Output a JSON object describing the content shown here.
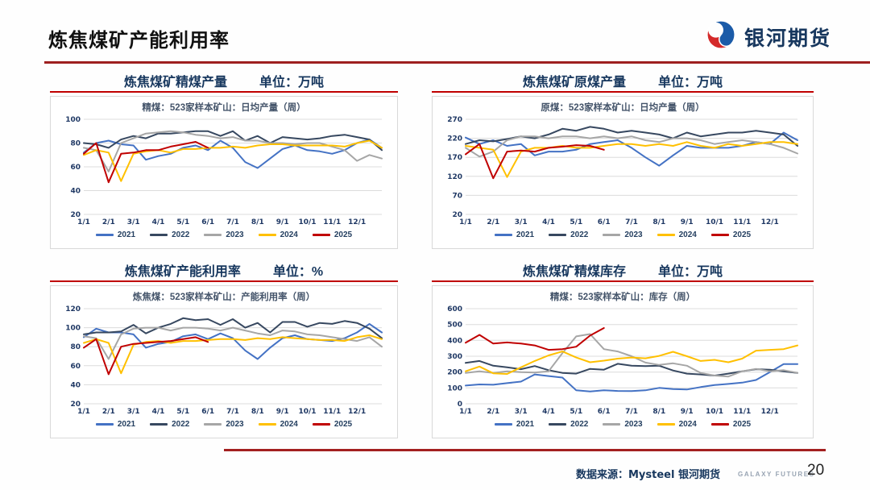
{
  "header": {
    "title": "炼焦煤矿产能利用率"
  },
  "logo": {
    "brand": "银河期货",
    "accent_red": "#d42a2a",
    "accent_blue": "#1b5ba8"
  },
  "footer": {
    "source": "数据来源：Mysteel 银河期货",
    "brand_en": "GALAXY FUTURES",
    "page": "20"
  },
  "chart_data": [
    {
      "type": "line",
      "title": "炼焦煤矿精煤产量",
      "unit": "单位：万吨",
      "subtitle": "精煤：523家样本矿山：日均产量（周）",
      "ylim": [
        20,
        100
      ],
      "y_ticks": [
        20,
        40,
        60,
        80,
        100
      ],
      "x_labels": [
        "1/1",
        "2/1",
        "3/1",
        "4/1",
        "5/1",
        "6/1",
        "7/1",
        "8/1",
        "9/1",
        "10/1",
        "11/1",
        "12/1"
      ],
      "grid": true,
      "legend_position": "bottom",
      "series": [
        {
          "name": "2021",
          "color": "#4472c4",
          "values": [
            72,
            80,
            82,
            79,
            78,
            66,
            69,
            71,
            76,
            78,
            74,
            82,
            76,
            64,
            59,
            67,
            75,
            78,
            74,
            73,
            71,
            74,
            80,
            83,
            76
          ]
        },
        {
          "name": "2022",
          "color": "#374860",
          "values": [
            80,
            79,
            76,
            83,
            86,
            84,
            88,
            88,
            89,
            90,
            90,
            86,
            90,
            82,
            86,
            80,
            85,
            84,
            83,
            84,
            86,
            87,
            85,
            83,
            74
          ]
        },
        {
          "name": "2023",
          "color": "#a6a6a6",
          "values": [
            76,
            74,
            56,
            80,
            84,
            88,
            89,
            90,
            89,
            87,
            86,
            84,
            85,
            82,
            82,
            80,
            80,
            79,
            80,
            80,
            77,
            74,
            65,
            70,
            67
          ]
        },
        {
          "name": "2024",
          "color": "#ffc000",
          "values": [
            70,
            74,
            72,
            48,
            71,
            73,
            74,
            72,
            75,
            75,
            76,
            76,
            77,
            76,
            78,
            79,
            79,
            78,
            78,
            78,
            78,
            77,
            80,
            82,
            76
          ]
        },
        {
          "name": "2025",
          "color": "#c00000",
          "values": [
            71,
            80,
            47,
            71,
            72,
            74,
            74,
            77,
            79,
            81,
            76,
            null,
            null,
            null,
            null,
            null,
            null,
            null,
            null,
            null,
            null,
            null,
            null,
            null,
            null
          ]
        }
      ]
    },
    {
      "type": "line",
      "title": "炼焦煤矿原煤产量",
      "unit": "单位：万吨",
      "subtitle": "原煤：523家样本矿山：日均产量（周）",
      "ylim": [
        20,
        270
      ],
      "y_ticks": [
        20,
        70,
        120,
        170,
        220,
        270
      ],
      "x_labels": [
        "1/1",
        "2/1",
        "3/1",
        "4/1",
        "5/1",
        "6/1",
        "7/1",
        "8/1",
        "9/1",
        "10/1",
        "11/1",
        "12/1"
      ],
      "grid": true,
      "legend_position": "bottom",
      "series": [
        {
          "name": "2021",
          "color": "#4472c4",
          "values": [
            222,
            205,
            215,
            200,
            205,
            175,
            185,
            185,
            190,
            205,
            210,
            215,
            195,
            170,
            148,
            175,
            200,
            195,
            195,
            195,
            200,
            210,
            205,
            235,
            215
          ]
        },
        {
          "name": "2022",
          "color": "#374860",
          "values": [
            205,
            215,
            212,
            218,
            225,
            220,
            230,
            245,
            240,
            250,
            245,
            235,
            240,
            235,
            230,
            220,
            235,
            225,
            230,
            235,
            235,
            240,
            235,
            230,
            200
          ]
        },
        {
          "name": "2023",
          "color": "#a6a6a6",
          "values": [
            195,
            172,
            185,
            215,
            225,
            225,
            220,
            225,
            225,
            220,
            225,
            220,
            225,
            215,
            210,
            220,
            220,
            215,
            205,
            210,
            215,
            210,
            205,
            195,
            180
          ]
        },
        {
          "name": "2024",
          "color": "#ffc000",
          "values": [
            200,
            195,
            190,
            118,
            185,
            195,
            195,
            200,
            195,
            195,
            200,
            205,
            205,
            200,
            205,
            200,
            210,
            200,
            195,
            205,
            200,
            205,
            210,
            210,
            205
          ]
        },
        {
          "name": "2025",
          "color": "#c00000",
          "values": [
            178,
            205,
            115,
            185,
            188,
            185,
            195,
            198,
            202,
            200,
            190,
            null,
            null,
            null,
            null,
            null,
            null,
            null,
            null,
            null,
            null,
            null,
            null,
            null,
            null
          ]
        }
      ]
    },
    {
      "type": "line",
      "title": "炼焦煤矿产能利用率",
      "unit": "单位：%",
      "subtitle": "炼焦煤：523家样本矿山：产能利用率（周）",
      "ylim": [
        20,
        120
      ],
      "y_ticks": [
        20,
        40,
        60,
        80,
        100,
        120
      ],
      "x_labels": [
        "1/1",
        "2/1",
        "3/1",
        "4/1",
        "5/1",
        "6/1",
        "7/1",
        "8/1",
        "9/1",
        "10/1",
        "11/1",
        "12/1"
      ],
      "grid": true,
      "legend_position": "bottom",
      "series": [
        {
          "name": "2021",
          "color": "#4472c4",
          "values": [
            90,
            99,
            95,
            95,
            93,
            79,
            83,
            85,
            91,
            93,
            88,
            94,
            89,
            76,
            67,
            79,
            89,
            92,
            88,
            87,
            86,
            89,
            95,
            104,
            95
          ]
        },
        {
          "name": "2022",
          "color": "#374860",
          "values": [
            93,
            95,
            95,
            96,
            103,
            94,
            100,
            104,
            110,
            108,
            109,
            103,
            109,
            100,
            105,
            95,
            106,
            106,
            101,
            105,
            104,
            107,
            105,
            99,
            89
          ]
        },
        {
          "name": "2023",
          "color": "#a6a6a6",
          "values": [
            91,
            89,
            67,
            93,
            99,
            100,
            100,
            97,
            100,
            100,
            99,
            97,
            100,
            97,
            94,
            92,
            97,
            96,
            93,
            92,
            90,
            88,
            86,
            90,
            80
          ]
        },
        {
          "name": "2024",
          "color": "#ffc000",
          "values": [
            84,
            88,
            84,
            52,
            82,
            85,
            86,
            84,
            86,
            86,
            87,
            88,
            88,
            87,
            89,
            88,
            90,
            89,
            88,
            87,
            87,
            86,
            90,
            92,
            88
          ]
        },
        {
          "name": "2025",
          "color": "#c00000",
          "values": [
            79,
            88,
            51,
            80,
            83,
            84,
            85,
            86,
            88,
            90,
            85,
            null,
            null,
            null,
            null,
            null,
            null,
            null,
            null,
            null,
            null,
            null,
            null,
            null,
            null
          ]
        }
      ]
    },
    {
      "type": "line",
      "title": "炼焦煤矿精煤库存",
      "unit": "单位：万吨",
      "subtitle": "精煤：523家样本矿山：库存（周）",
      "ylim": [
        0,
        600
      ],
      "y_ticks": [
        0,
        100,
        200,
        300,
        400,
        500,
        600
      ],
      "x_labels": [
        "1/1",
        "2/1",
        "3/1",
        "4/1",
        "5/1",
        "6/1",
        "7/1",
        "8/1",
        "9/1",
        "10/1",
        "11/1",
        "12/1"
      ],
      "grid": true,
      "legend_position": "bottom",
      "series": [
        {
          "name": "2021",
          "color": "#4472c4",
          "values": [
            115,
            122,
            120,
            130,
            140,
            185,
            175,
            165,
            85,
            78,
            85,
            81,
            80,
            85,
            100,
            93,
            90,
            105,
            118,
            125,
            133,
            150,
            200,
            250,
            250
          ]
        },
        {
          "name": "2022",
          "color": "#374860",
          "values": [
            258,
            270,
            240,
            230,
            218,
            238,
            212,
            195,
            190,
            220,
            215,
            252,
            240,
            238,
            240,
            210,
            190,
            185,
            178,
            190,
            205,
            218,
            215,
            205,
            195
          ]
        },
        {
          "name": "2023",
          "color": "#a6a6a6",
          "values": [
            195,
            205,
            195,
            205,
            200,
            197,
            205,
            320,
            425,
            440,
            345,
            330,
            300,
            260,
            245,
            255,
            240,
            195,
            178,
            172,
            205,
            220,
            205,
            212,
            195
          ]
        },
        {
          "name": "2024",
          "color": "#ffc000",
          "values": [
            205,
            235,
            192,
            188,
            230,
            270,
            305,
            330,
            292,
            262,
            272,
            285,
            292,
            287,
            302,
            328,
            300,
            270,
            277,
            262,
            285,
            335,
            340,
            345,
            368
          ]
        },
        {
          "name": "2025",
          "color": "#c00000",
          "values": [
            385,
            435,
            380,
            387,
            380,
            368,
            340,
            345,
            360,
            430,
            478,
            null,
            null,
            null,
            null,
            null,
            null,
            null,
            null,
            null,
            null,
            null,
            null,
            null,
            null
          ]
        }
      ]
    }
  ]
}
